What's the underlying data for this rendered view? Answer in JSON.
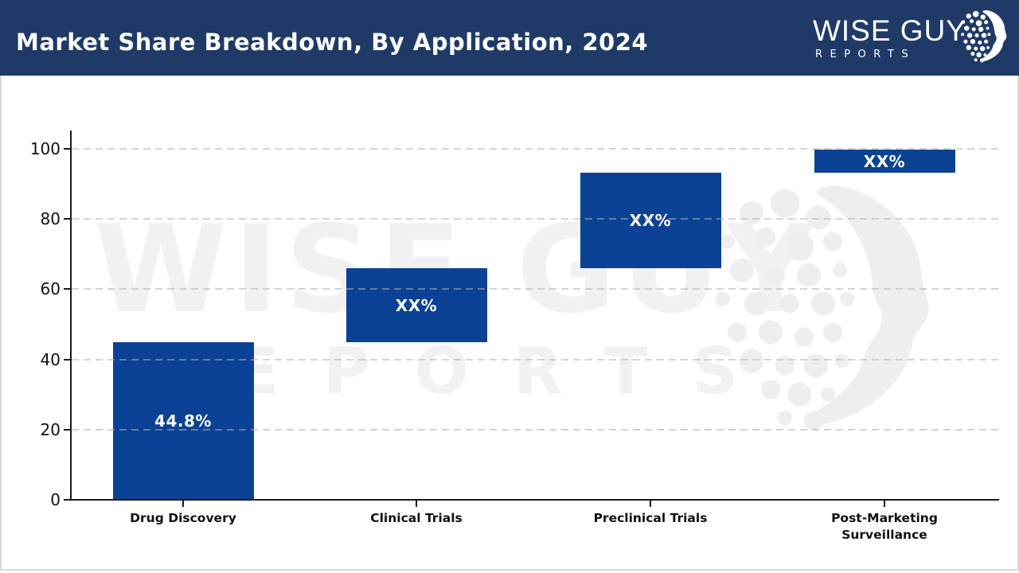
{
  "header": {
    "title": "Market Share Breakdown, By Application, 2024",
    "brand_name": "WISE GUY",
    "brand_sub": "REPORTS",
    "bg_color": "#1f3a67"
  },
  "watermark": {
    "line1": "WISE GUY",
    "line2": "REPORTS"
  },
  "chart_data": {
    "type": "bar",
    "subtype": "waterfall",
    "title": "Market Share Breakdown, By Application, 2024",
    "categories": [
      "Drug Discovery",
      "Clinical Trials",
      "Preclinical Trials",
      "Post-Marketing Surveillance"
    ],
    "segments": [
      {
        "category": "Drug Discovery",
        "start": 0,
        "end": 44.8,
        "label": "44.8%"
      },
      {
        "category": "Clinical Trials",
        "start": 44.8,
        "end": 66.0,
        "label": "XX%"
      },
      {
        "category": "Preclinical Trials",
        "start": 66.0,
        "end": 93.2,
        "label": "XX%"
      },
      {
        "category": "Post-Marketing Surveillance",
        "start": 93.2,
        "end": 99.7,
        "label": "XX%"
      }
    ],
    "y_ticks": [
      0,
      20,
      40,
      60,
      80,
      100
    ],
    "ylim": [
      0,
      105
    ],
    "xlabel": "",
    "ylabel": "",
    "legend": "none",
    "grid": "horizontal-dashed",
    "bar_color": "#0b4295",
    "bar_label_color": "#ffffff",
    "gridline_color": "#d9d9d9",
    "axis_color": "#1a1a1a"
  }
}
